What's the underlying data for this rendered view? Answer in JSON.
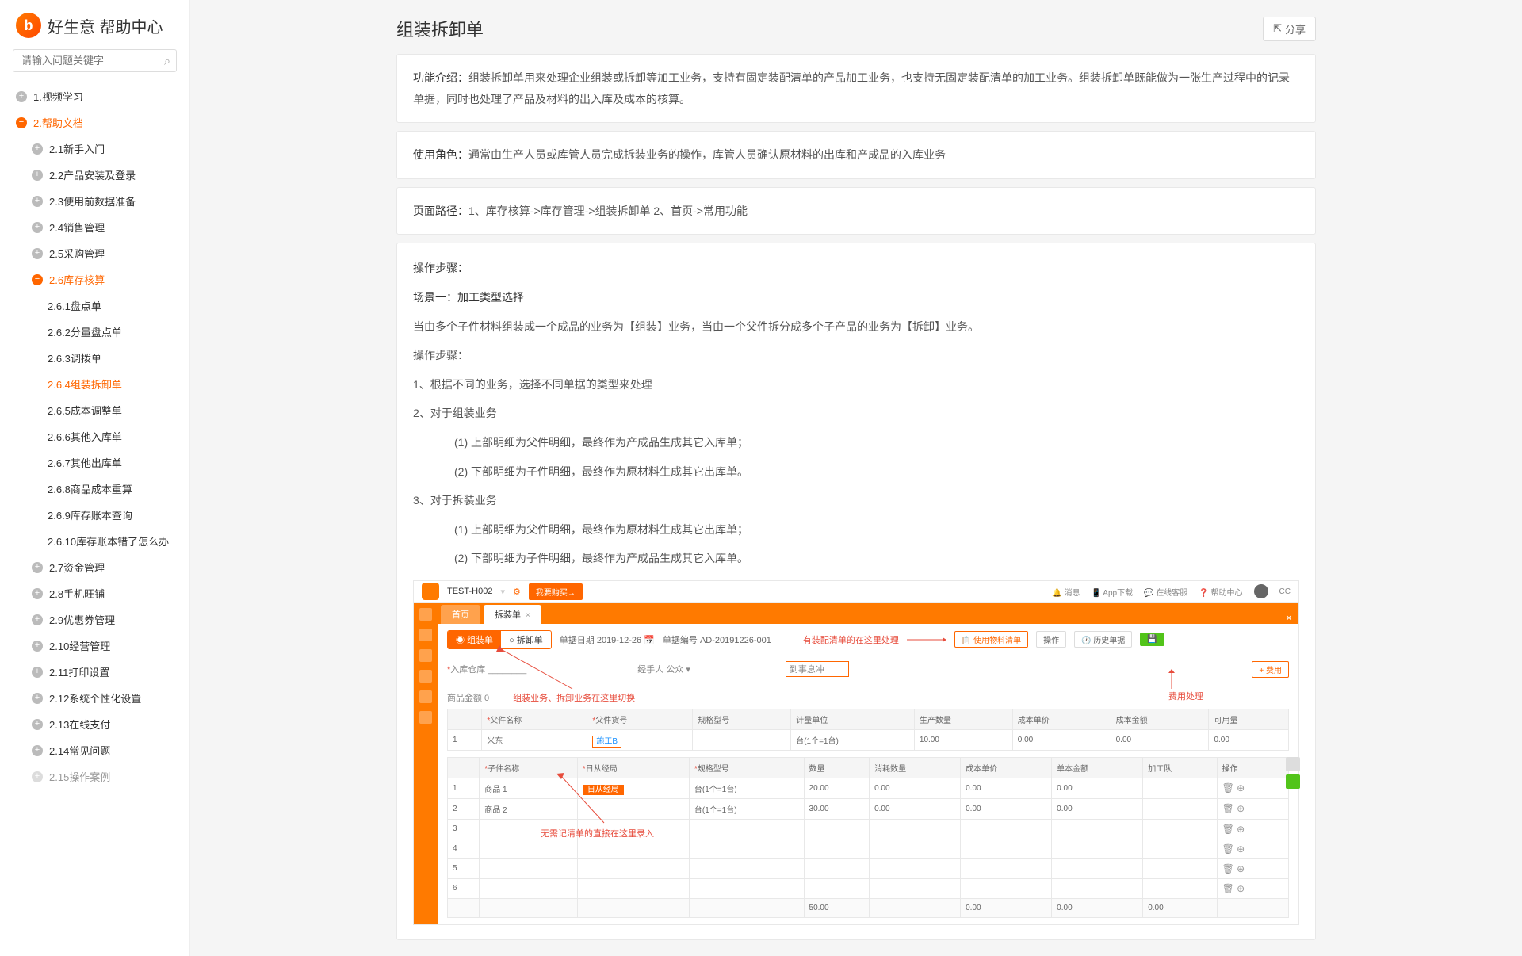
{
  "header": {
    "logo_letter": "b",
    "title": "好生意 帮助中心"
  },
  "search": {
    "placeholder": "请输入问题关键字"
  },
  "nav": {
    "s1": "1.视频学习",
    "s2": "2.帮助文档",
    "s2_1": "2.1新手入门",
    "s2_2": "2.2产品安装及登录",
    "s2_3": "2.3使用前数据准备",
    "s2_4": "2.4销售管理",
    "s2_5": "2.5采购管理",
    "s2_6": "2.6库存核算",
    "s2_6_1": "2.6.1盘点单",
    "s2_6_2": "2.6.2分量盘点单",
    "s2_6_3": "2.6.3调拨单",
    "s2_6_4": "2.6.4组装拆卸单",
    "s2_6_5": "2.6.5成本调整单",
    "s2_6_6": "2.6.6其他入库单",
    "s2_6_7": "2.6.7其他出库单",
    "s2_6_8": "2.6.8商品成本重算",
    "s2_6_9": "2.6.9库存账本查询",
    "s2_6_10": "2.6.10库存账本错了怎么办",
    "s2_7": "2.7资金管理",
    "s2_8": "2.8手机旺铺",
    "s2_9": "2.9优惠券管理",
    "s2_10": "2.10经营管理",
    "s2_11": "2.11打印设置",
    "s2_12": "2.12系统个性化设置",
    "s2_13": "2.13在线支付",
    "s2_14": "2.14常见问题",
    "s2_15": "2.15操作案例"
  },
  "page": {
    "title": "组装拆卸单",
    "share": "分享"
  },
  "panels": {
    "intro_label": "功能介绍：",
    "intro_text": "组装拆卸单用来处理企业组装或拆卸等加工业务，支持有固定装配清单的产品加工业务，也支持无固定装配清单的加工业务。组装拆卸单既能做为一张生产过程中的记录单据，同时也处理了产品及材料的出入库及成本的核算。",
    "role_label": "使用角色：",
    "role_text": "通常由生产人员或库管人员完成拆装业务的操作，库管人员确认原材料的出库和产成品的入库业务",
    "path_label": "页面路径：",
    "path_text": "1、库存核算->库存管理->组装拆卸单 2、首页->常用功能"
  },
  "body": {
    "steps_label": "操作步骤：",
    "scene_label": "场景一：加工类型选择",
    "p1": "当由多个子件材料组装成一个成品的业务为【组装】业务，当由一个父件拆分成多个子产品的业务为【拆卸】业务。",
    "p2": "操作步骤：",
    "p3": "1、根据不同的业务，选择不同单据的类型来处理",
    "p4": "2、对于组装业务",
    "p4a": "(1) 上部明细为父件明细，最终作为产成品生成其它入库单；",
    "p4b": "(2) 下部明细为子件明细，最终作为原材料生成其它出库单。",
    "p5": "3、对于拆装业务",
    "p5a": "(1) 上部明细为父件明细，最终作为原材料生成其它出库单；",
    "p5b": "(2) 下部明细为子件明细，最终作为产成品生成其它入库单。"
  },
  "ss": {
    "top_code": "TEST-H002",
    "top_items": [
      "消息",
      "App下载",
      "在线客服",
      "帮助中心",
      "CC"
    ],
    "tab_home": "首页",
    "tab_active": "拆装单",
    "type_combine": "组装单",
    "type_split": "拆卸单",
    "date_label": "单据日期",
    "date_val": "2019-12-26",
    "code_label": "单据编号",
    "code_val": "AD-20191226-001",
    "annot_list": "有装配清单的在这里处理",
    "btn_use_list": "使用物料清单",
    "btn_op": "操作",
    "btn_history": "历史单据",
    "in_store": "入库仓库",
    "clerk": "经手人",
    "fee_account": "到事息冲",
    "btn_fee": "费用",
    "biz_cost": "商品金额",
    "annot_switch": "组装业务、拆卸业务在这里切换",
    "annot_fee": "费用处理",
    "annot_input": "无需记清单的直接在这里录入",
    "th_parent": [
      "",
      "父件名称",
      "父件货号",
      "规格型号",
      "计量单位",
      "生产数量",
      "成本单价",
      "成本金额",
      "可用量"
    ],
    "parent_row": [
      "1",
      "米东",
      "施工B",
      "",
      "台(1个=1台)",
      "10.00",
      "0.00",
      "0.00",
      "0.00"
    ],
    "th_child": [
      "",
      "子件名称",
      "日从经局",
      "规格型号",
      "数量",
      "消耗数量",
      "成本单价",
      "单本金额",
      "加工队"
    ],
    "child_rows": [
      [
        "1",
        "商品 1",
        "",
        "台(1个=1台)",
        "20.00",
        "0.00",
        "0.00",
        "0.00",
        ""
      ],
      [
        "2",
        "商品 2",
        "",
        "台(1个=1台)",
        "30.00",
        "0.00",
        "0.00",
        "0.00",
        ""
      ],
      [
        "3",
        "",
        "",
        "",
        "",
        "",
        "",
        "",
        ""
      ],
      [
        "4",
        "",
        "",
        "",
        "",
        "",
        "",
        "",
        ""
      ],
      [
        "5",
        "",
        "",
        "",
        "",
        "",
        "",
        "",
        ""
      ],
      [
        "6",
        "",
        "",
        "",
        "",
        "",
        "",
        "",
        ""
      ]
    ],
    "sum": [
      "",
      "",
      "",
      "",
      "50.00",
      "",
      "0.00",
      "0.00",
      "0.00"
    ],
    "ops": "操作"
  }
}
